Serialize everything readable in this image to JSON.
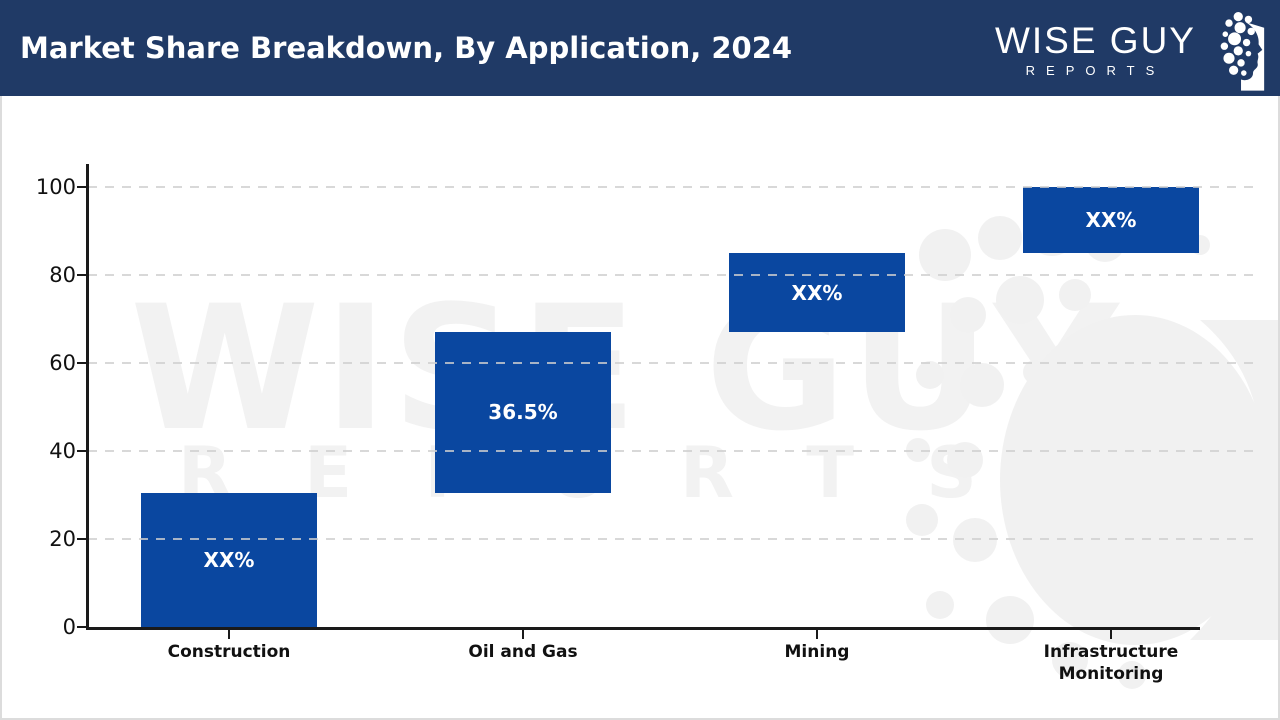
{
  "header": {
    "title": "Market Share Breakdown, By Application, 2024",
    "bg_color": "#203a66",
    "logo": {
      "line1": "WISE GUY",
      "line2": "REPORTS"
    }
  },
  "watermark": {
    "line1": "WISE GUY",
    "line2": "R E P O R T S"
  },
  "chart_data": {
    "type": "bar",
    "subtype": "waterfall-floating-bars",
    "title": "Market Share Breakdown, By Application, 2024",
    "categories": [
      "Construction",
      "Oil and Gas",
      "Mining",
      "Infrastructure Monitoring"
    ],
    "segments": [
      {
        "category": "Construction",
        "start": 0,
        "end": 30.5,
        "label": "XX%"
      },
      {
        "category": "Oil and Gas",
        "start": 30.5,
        "end": 67,
        "label": "36.5%"
      },
      {
        "category": "Mining",
        "start": 67,
        "end": 85,
        "label": "XX%"
      },
      {
        "category": "Infrastructure Monitoring",
        "start": 85,
        "end": 100,
        "label": "XX%"
      }
    ],
    "xlabel": "",
    "ylabel": "",
    "ylim": [
      0,
      100
    ],
    "yticks": [
      0,
      20,
      40,
      60,
      80,
      100
    ],
    "grid": "horizontal-dashed",
    "gridline_color": "#d9d9d9",
    "bar_color": "#0a47a0",
    "value_label_color": "#ffffff",
    "axis_color": "#1a1a1a"
  }
}
